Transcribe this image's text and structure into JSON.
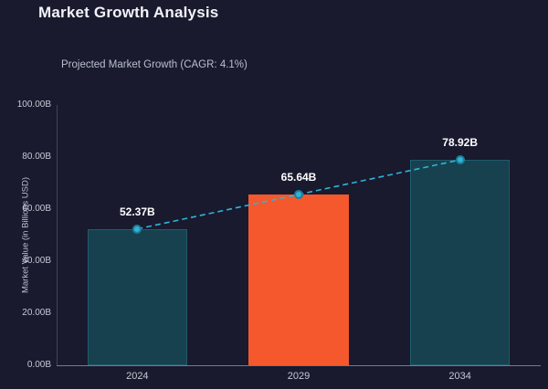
{
  "header": {
    "title": "Market Growth Analysis",
    "subtitle": "Projected Market Growth (CAGR: 4.1%)"
  },
  "chart_data": {
    "type": "bar",
    "title": "Market Growth Analysis",
    "subtitle": "Projected Market Growth (CAGR: 4.1%)",
    "categories": [
      "2024",
      "2029",
      "2034"
    ],
    "values": [
      52.37,
      65.64,
      78.92
    ],
    "value_labels": [
      "52.37B",
      "65.64B",
      "78.92B"
    ],
    "bar_colors": [
      "teal",
      "orange",
      "teal"
    ],
    "xlabel": "",
    "ylabel": "Market Value (in Billions USD)",
    "ylim": [
      0,
      100
    ],
    "yticks": [
      0,
      20,
      40,
      60,
      80,
      100
    ],
    "ytick_labels": [
      "0.00B",
      "20.00B",
      "40.00B",
      "60.00B",
      "80.00B",
      "100.00B"
    ],
    "grid": false,
    "legend": "none",
    "overlay_line": {
      "style": "dashed",
      "connects": "bar tops",
      "marker": "circle"
    }
  },
  "colors": {
    "background": "#191a2e",
    "bar_teal": "#17414f",
    "bar_teal_border": "#235a6b",
    "bar_orange": "#f4582c",
    "line_accent": "#2fb4d6",
    "dot_ring": "#1d7e99",
    "title_text": "#f2f4f7",
    "muted_text": "#b9c0cb",
    "tick_text": "#c4cad4"
  }
}
